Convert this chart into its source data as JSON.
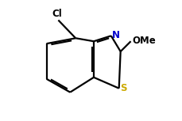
{
  "bg_color": "#ffffff",
  "bond_color": "#000000",
  "N_color": "#0000cd",
  "S_color": "#ccaa00",
  "label_N": "N",
  "label_S": "S",
  "label_Cl": "Cl",
  "label_OMe": "OMe",
  "figsize": [
    2.29,
    1.53
  ],
  "dpi": 100,
  "lw": 1.6
}
